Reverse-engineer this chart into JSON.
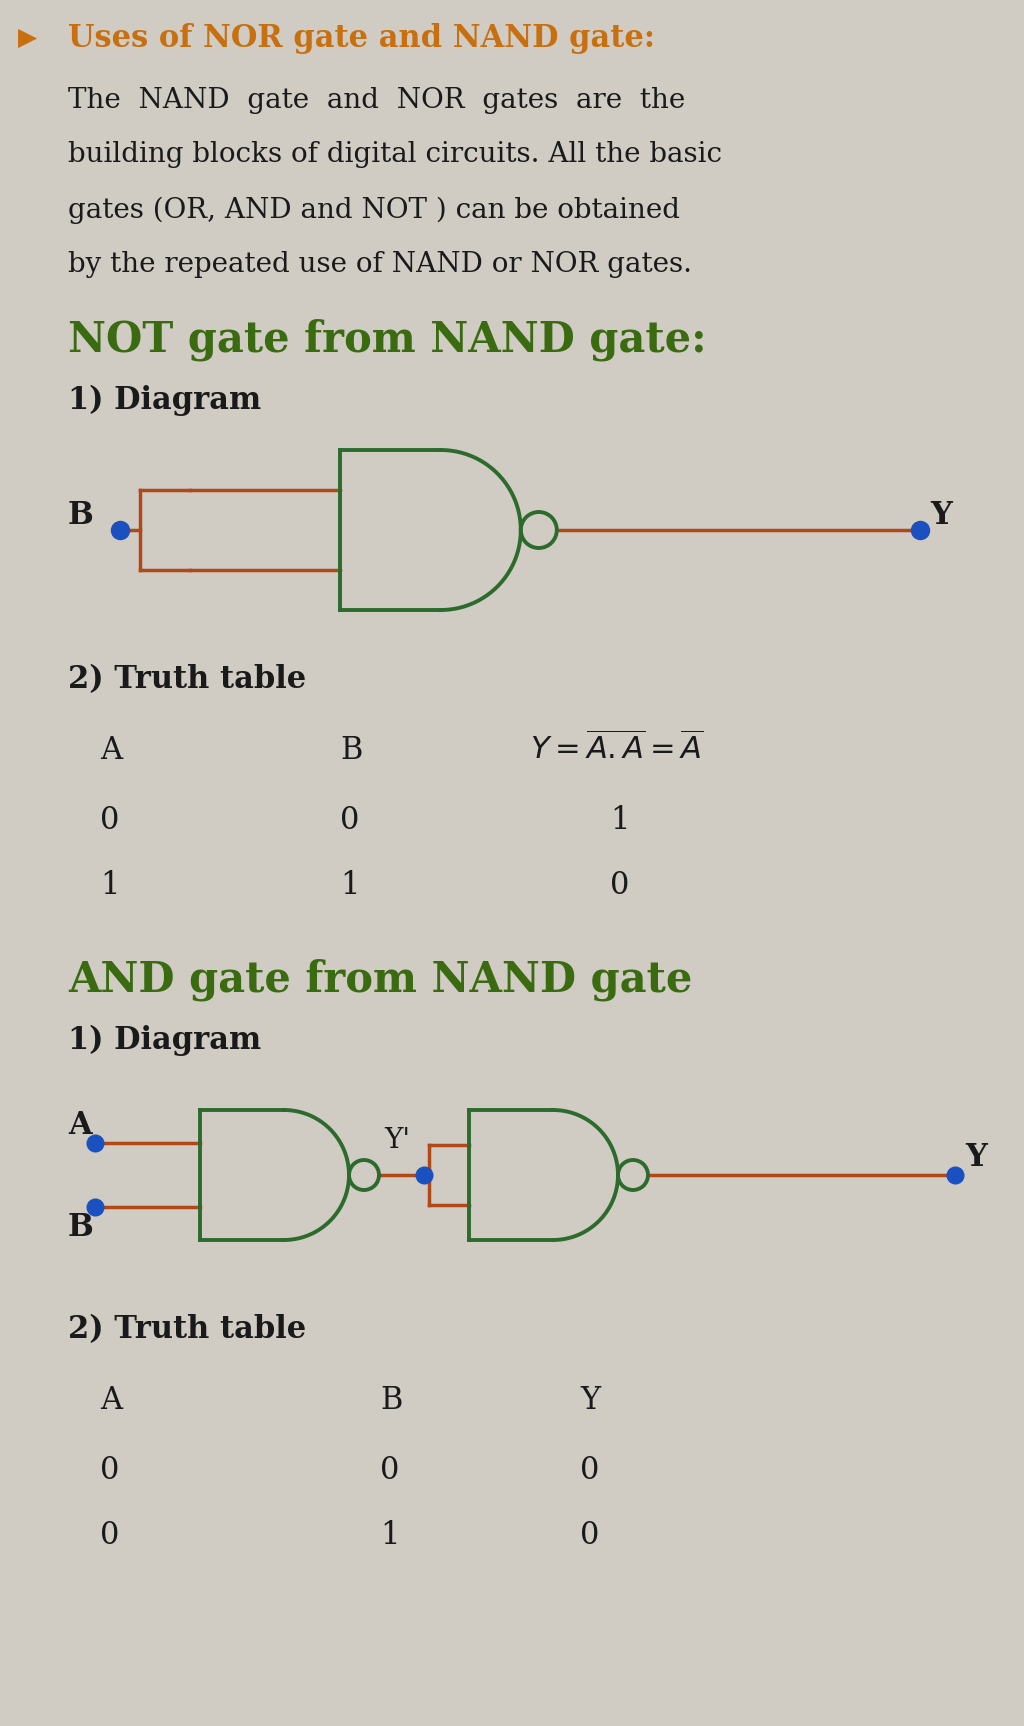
{
  "bg_color": "#d0ccc4",
  "title_color": "#c87010",
  "subtitle_color": "#3a6b10",
  "body_color": "#1a1a1a",
  "gate_color": "#2d6b2d",
  "wire_color": "#b04818",
  "dot_color": "#1a50c0",
  "heading1": "Uses of NOR gate and NAND gate:",
  "para_line1": "The  NAND  gate  and  NOR  gates  are  the",
  "para_line2": "building blocks of digital circuits. All the basic",
  "para_line3": "gates (OR, AND and NOT ) can be obtained",
  "para_line4": "by the repeated use of NAND or NOR gates.",
  "section1_title": "NOT gate from NAND gate:",
  "section2_title": "AND gate from NAND gate",
  "diag_label": "1) Diagram",
  "truth_label": "2) Truth table"
}
